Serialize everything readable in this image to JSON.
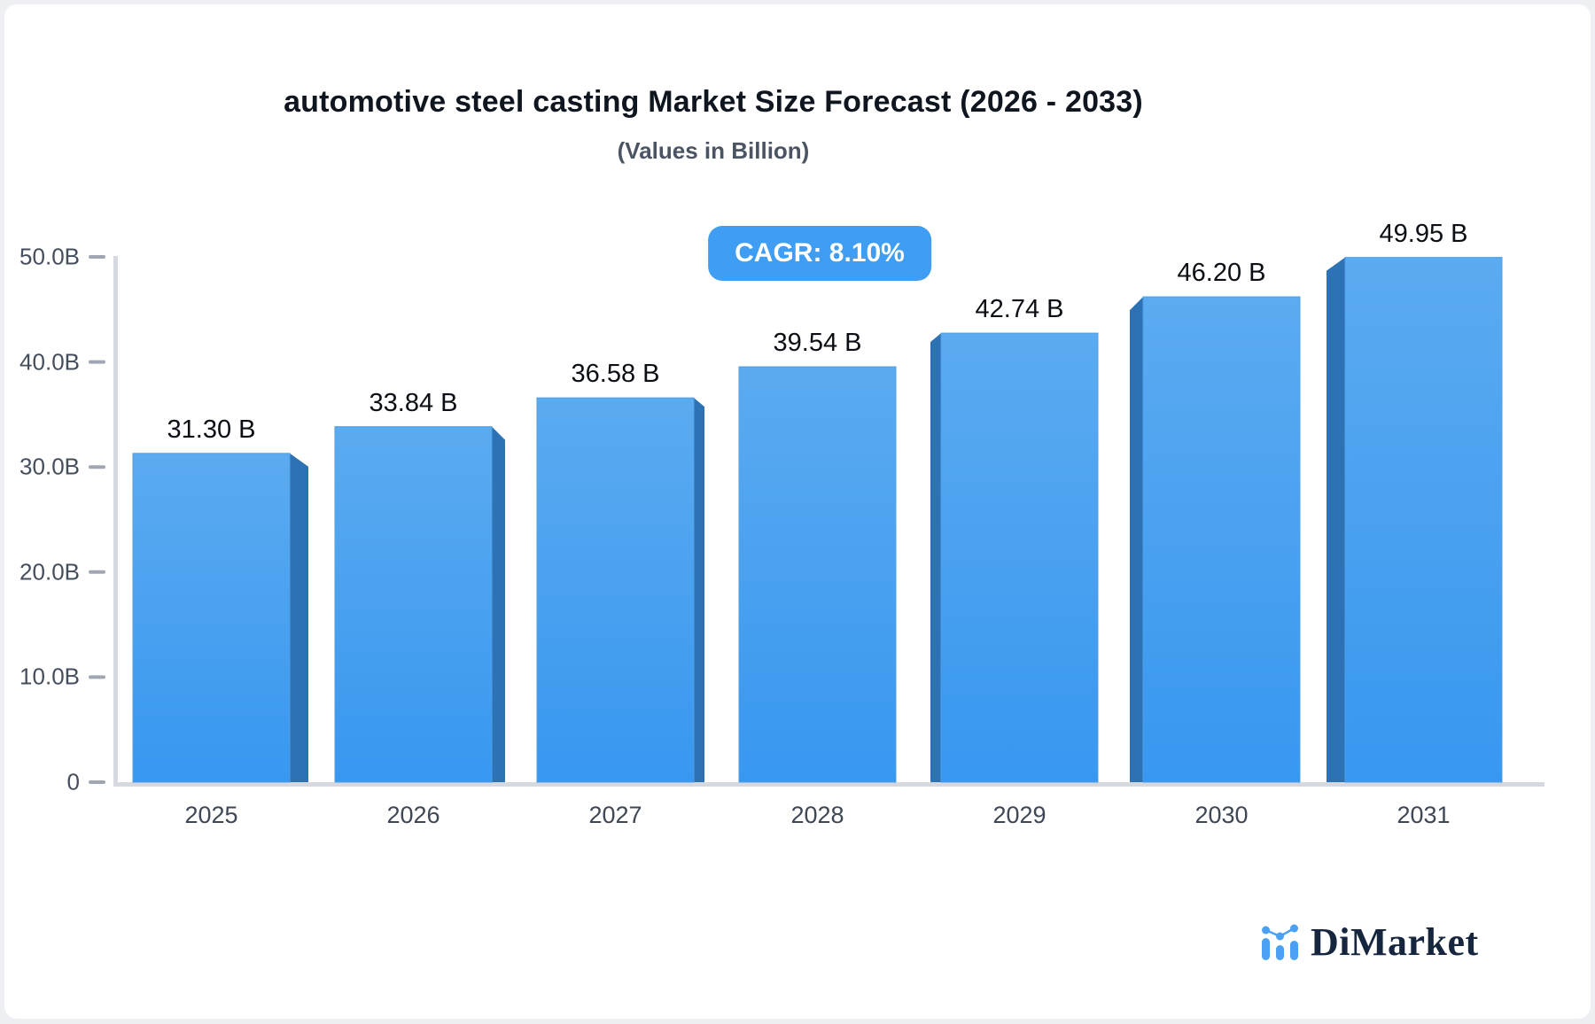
{
  "header": {
    "title": "automotive steel casting Market Size Forecast (2026 - 2033)",
    "subtitle": "(Values in Billion)"
  },
  "cagr_badge": {
    "label": "CAGR: 8.10%",
    "background": "#3f9df3",
    "text_color": "#ffffff"
  },
  "chart_data": {
    "type": "bar",
    "title": "automotive steel casting Market Size Forecast (2026 - 2033)",
    "subtitle": "(Values in Billion)",
    "categories": [
      "2025",
      "2026",
      "2027",
      "2028",
      "2029",
      "2030",
      "2031"
    ],
    "values": [
      31.3,
      33.84,
      36.58,
      39.54,
      42.74,
      46.2,
      49.95
    ],
    "bar_labels": [
      "31.30 B",
      "33.84 B",
      "36.58 B",
      "39.54 B",
      "42.74 B",
      "46.20 B",
      "49.95 B"
    ],
    "y_ticks": [
      {
        "label": "50.0B",
        "value": 50
      },
      {
        "label": "40.0B",
        "value": 40
      },
      {
        "label": "30.0B",
        "value": 30
      },
      {
        "label": "20.0B",
        "value": 20
      },
      {
        "label": "10.0B",
        "value": 10
      },
      {
        "label": "0",
        "value": 0
      }
    ],
    "ylim": [
      0,
      50
    ],
    "xlabel": "",
    "ylabel": "",
    "grid": false,
    "legend": "none",
    "style_3d": "perspective side faces toward center bar",
    "colors": {
      "bar_face_top": "#5babf0",
      "bar_face_bottom": "#3897f0",
      "bar_face_edge": "#4f9fe6",
      "bar_side": "#2c72b4",
      "axis_line": "#d6d9df",
      "tick_mark": "#a0a7b3",
      "y_label": "#454e5c",
      "x_label": "#3e4754",
      "value_label": "#0b0f15"
    }
  },
  "logo": {
    "brand": "DiMarket",
    "icon": "bar-line-chart-icon",
    "icon_color": "#4aa0f5",
    "text_color": "#17263f"
  }
}
